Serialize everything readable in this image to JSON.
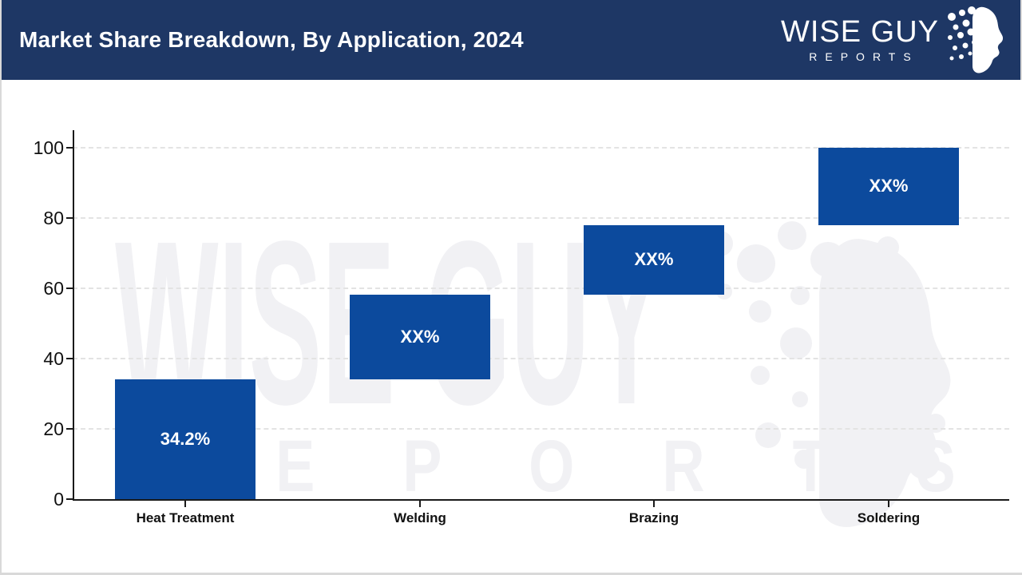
{
  "header": {
    "title": "Market Share Breakdown, By Application, 2024",
    "background_color": "#1e3765",
    "logo": {
      "line1": "WISE GUY",
      "line2": "REPORTS",
      "icon": "wiseguy-face-icon"
    }
  },
  "watermark": {
    "line1": "WISE GUY",
    "line2": "R E P O R T S",
    "color": "#f1f1f4"
  },
  "chart_data": {
    "type": "bar",
    "subtype": "waterfall",
    "title": "Market Share Breakdown, By Application, 2024",
    "categories": [
      "Heat Treatment",
      "Welding",
      "Brazing",
      "Soldering"
    ],
    "segments": [
      {
        "category": "Heat Treatment",
        "start": 0,
        "end": 34.2,
        "label": "34.2%"
      },
      {
        "category": "Welding",
        "start": 34.2,
        "end": 58.2,
        "label": "XX%"
      },
      {
        "category": "Brazing",
        "start": 58.2,
        "end": 78.0,
        "label": "XX%"
      },
      {
        "category": "Soldering",
        "start": 78.0,
        "end": 100,
        "label": "XX%"
      }
    ],
    "bar_color": "#0c4a9d",
    "bar_label_color": "#ffffff",
    "yticks": [
      0,
      20,
      40,
      60,
      80,
      100
    ],
    "ylim": [
      0,
      100
    ],
    "xlabel": "",
    "ylabel": "",
    "grid": "horizontal-dashed",
    "legend": "none"
  }
}
